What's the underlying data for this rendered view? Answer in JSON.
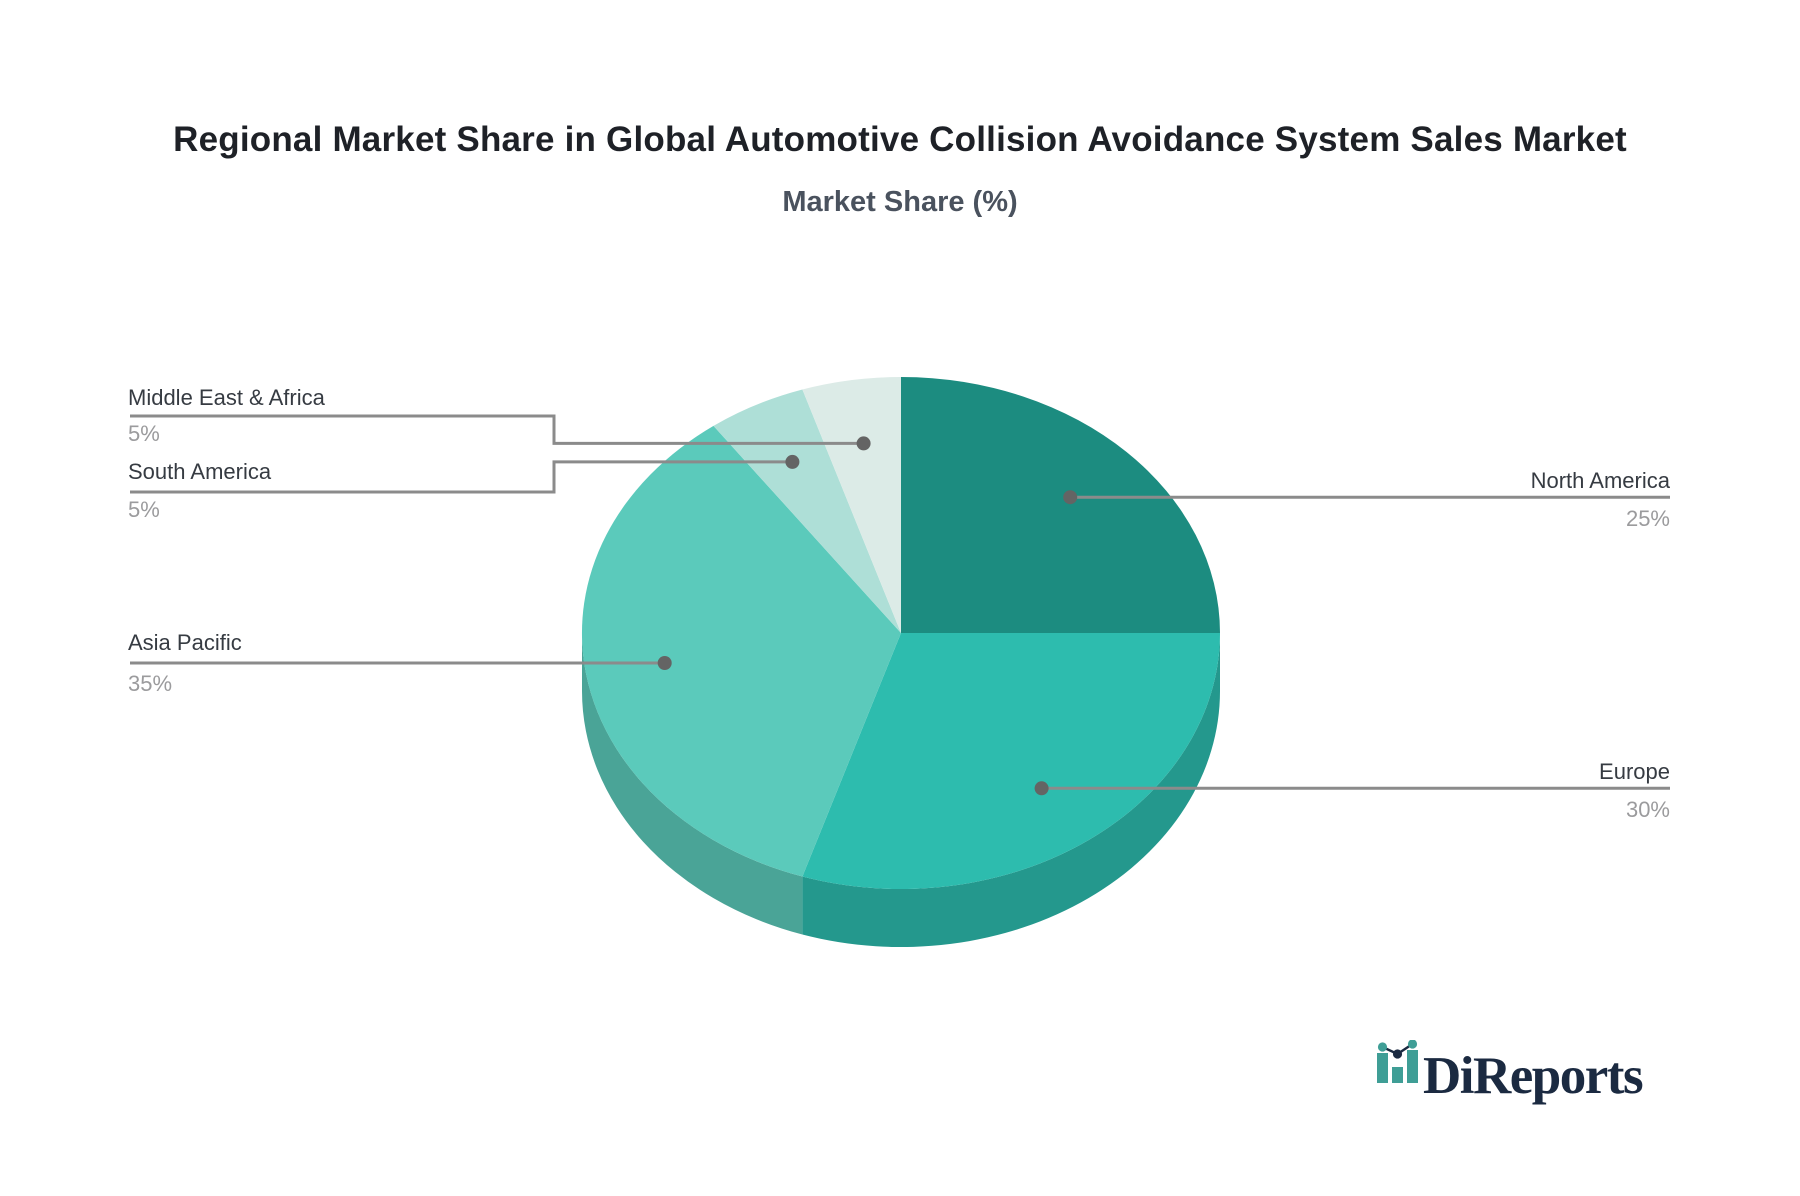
{
  "header": {
    "title": "Regional Market Share in Global Automotive Collision Avoidance System Sales Market",
    "subtitle": "Market Share (%)"
  },
  "brand": {
    "name": "DiReports",
    "icon": "mini-bar-chart-icon",
    "icon_color": "#3f9e96",
    "text_color": "#1b2a41"
  },
  "palette": {
    "callout_line": "#8b8b8b",
    "callout_dot": "#646464",
    "label_text": "#363b42",
    "value_text": "#9b9b9d",
    "background": "#ffffff"
  },
  "chart_data": {
    "type": "pie",
    "style": "3d-depth",
    "direction": "clockwise",
    "start_angle": "12-o'clock",
    "title": "Regional Market Share in Global Automotive Collision Avoidance System Sales Market",
    "subtitle": "Market Share (%)",
    "unit": "%",
    "legend_position": "callout-labels",
    "slices": [
      {
        "label": "North America",
        "value": 25,
        "pct_text": "25%",
        "color": "#1c8c80"
      },
      {
        "label": "Europe",
        "value": 30,
        "pct_text": "30%",
        "color": "#2dbcae"
      },
      {
        "label": "Asia Pacific",
        "value": 35,
        "pct_text": "35%",
        "color": "#5bcabb"
      },
      {
        "label": "South America",
        "value": 5,
        "pct_text": "5%",
        "color": "#aedfd7"
      },
      {
        "label": "Middle East & Africa",
        "value": 5,
        "pct_text": "5%",
        "color": "#dcebe7"
      }
    ]
  }
}
